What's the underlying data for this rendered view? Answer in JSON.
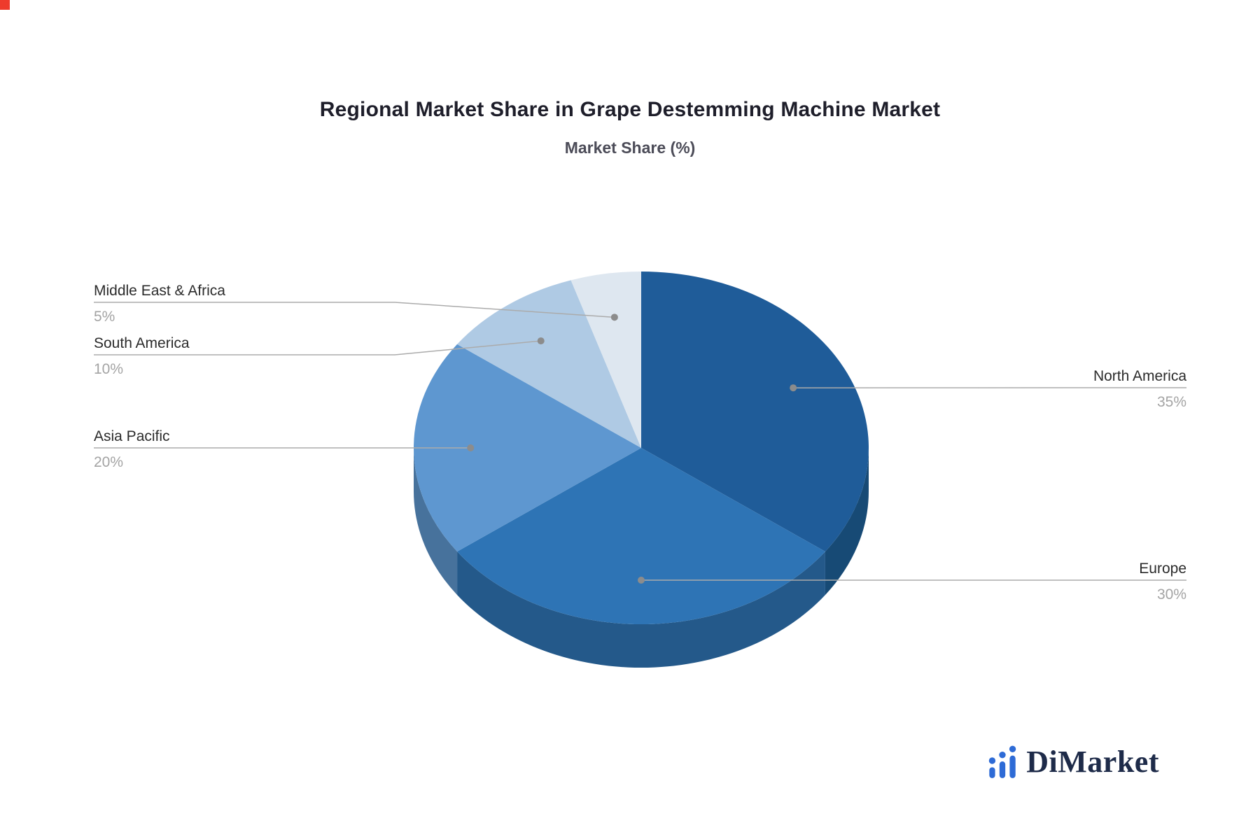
{
  "chart_data": {
    "type": "pie",
    "title": "Regional Market Share in Grape Destemming Machine Market",
    "subtitle": "Market Share (%)",
    "unit": "%",
    "effect": "3d",
    "start_angle": "top",
    "direction": "clockwise",
    "labels": [
      "North America",
      "Europe",
      "Asia Pacific",
      "South America",
      "Middle East & Africa"
    ],
    "values": [
      35,
      30,
      20,
      10,
      5
    ],
    "slices": [
      {
        "label": "North America",
        "value": 35,
        "display": "35%",
        "color": "#1F5C99",
        "side_color": "#174A75"
      },
      {
        "label": "Europe",
        "value": 30,
        "display": "30%",
        "color": "#2E74B5",
        "side_color": "#24598A"
      },
      {
        "label": "Asia Pacific",
        "value": 20,
        "display": "20%",
        "color": "#5E97D0",
        "side_color": "#47729C"
      },
      {
        "label": "South America",
        "value": 10,
        "display": "10%",
        "color": "#AFCAE4",
        "side_color": "#8FA8BD"
      },
      {
        "label": "Middle East & Africa",
        "value": 5,
        "display": "5%",
        "color": "#DEE7F0",
        "side_color": "#B6BFCB"
      }
    ],
    "leader_color": "#ABABAB",
    "leader_dot_color": "#8C8C8C",
    "label_text_color": "#2B2B2B",
    "percent_text_color": "#A4A4A4"
  },
  "branding": {
    "logo_text": "DiMarket",
    "logo_icon": "bar-chart-icon",
    "icon_color": "#2E6BD6",
    "text_color": "#1E2B49"
  }
}
